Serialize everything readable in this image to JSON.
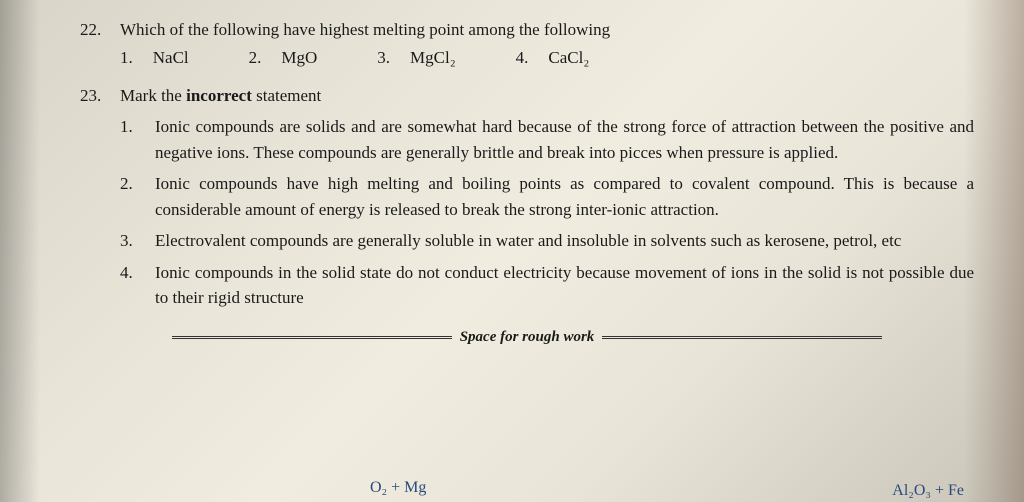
{
  "q22": {
    "number": "22.",
    "text": "Which of the following have highest melting point among the following",
    "options": [
      {
        "num": "1.",
        "text": "NaCl"
      },
      {
        "num": "2.",
        "text": "MgO"
      },
      {
        "num": "3.",
        "text": "MgCl₂"
      },
      {
        "num": "4.",
        "text": "CaCl₂"
      }
    ]
  },
  "q23": {
    "number": "23.",
    "text_prefix": "Mark the ",
    "text_bold": "incorrect",
    "text_suffix": " statement",
    "statements": [
      {
        "num": "1.",
        "text": "Ionic compounds are solids and are somewhat hard because of the strong force of attraction between the positive and negative ions. These compounds are generally brittle and break into picces when pressure is applied."
      },
      {
        "num": "2.",
        "text": "Ionic compounds have high melting and boiling points as compared to covalent compound. This is because a considerable amount of energy is released to break the strong inter-ionic attraction."
      },
      {
        "num": "3.",
        "text": "Electrovalent compounds are generally soluble in water and insoluble in solvents such as kerosene, petrol, etc"
      },
      {
        "num": "4.",
        "text": "Ionic compounds in the solid state do not conduct electricity because movement of ions in the solid is not possible due to their rigid structure"
      }
    ]
  },
  "divider": "Space for rough work",
  "handwriting": {
    "hw1": "O₂ + Mg",
    "hw2": "Al₂O₃ + Fe"
  }
}
